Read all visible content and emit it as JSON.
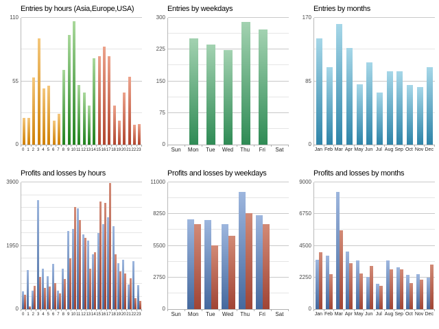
{
  "page": {
    "background": "#ffffff",
    "grid_layout": "2 rows x 3 columns of bar charts"
  },
  "palette": {
    "asia_orange": [
      "#f4c77c",
      "#cf8004"
    ],
    "europe_green": [
      "#a9d89b",
      "#20821d"
    ],
    "usa_red": [
      "#eca28b",
      "#b1452e"
    ],
    "weekday_green": [
      "#a3d2b1",
      "#2f8b55"
    ],
    "month_blue": [
      "#a6d7e8",
      "#2e84a8"
    ],
    "profit_blue": [
      "#9db6de",
      "#45699e"
    ],
    "loss_red": [
      "#d28a76",
      "#a04434"
    ]
  },
  "chart_data": [
    {
      "type": "bar",
      "title": "Entries by hours (Asia,Europe,USA)",
      "xlabel": "",
      "ylabel": "",
      "y_max": 110,
      "y_ticks": [
        0,
        55,
        110
      ],
      "grid_divisions": 4,
      "legend": "none",
      "categories": [
        "0",
        "1",
        "2",
        "3",
        "4",
        "5",
        "6",
        "7",
        "8",
        "9",
        "10",
        "11",
        "12",
        "13",
        "14",
        "15",
        "16",
        "17",
        "18",
        "19",
        "20",
        "21",
        "22",
        "23"
      ],
      "series": [
        {
          "name": "entries",
          "values": [
            23,
            23,
            58,
            92,
            49,
            51,
            21,
            27,
            65,
            95,
            107,
            52,
            45,
            34,
            75,
            77,
            85,
            77,
            34,
            21,
            45,
            59,
            17,
            18
          ]
        }
      ],
      "bar_palettes": [
        "asia_orange",
        "asia_orange",
        "asia_orange",
        "asia_orange",
        "asia_orange",
        "asia_orange",
        "asia_orange",
        "asia_orange",
        "europe_green",
        "europe_green",
        "europe_green",
        "europe_green",
        "europe_green",
        "europe_green",
        "europe_green",
        "usa_red",
        "usa_red",
        "usa_red",
        "usa_red",
        "usa_red",
        "usa_red",
        "usa_red",
        "usa_red",
        "usa_red"
      ]
    },
    {
      "type": "bar",
      "title": "Entries by weekdays",
      "xlabel": "",
      "ylabel": "",
      "y_max": 300,
      "y_ticks": [
        0,
        75,
        150,
        225,
        300
      ],
      "grid_divisions": 8,
      "legend": "none",
      "categories": [
        "Sun",
        "Mon",
        "Tue",
        "Wed",
        "Thu",
        "Fri",
        "Sat"
      ],
      "series": [
        {
          "name": "entries",
          "palette": "weekday_green",
          "values": [
            0,
            252,
            237,
            224,
            290,
            272,
            0
          ]
        }
      ]
    },
    {
      "type": "bar",
      "title": "Entries by months",
      "xlabel": "",
      "ylabel": "",
      "y_max": 170,
      "y_ticks": [
        0,
        85,
        170
      ],
      "grid_divisions": 4,
      "legend": "none",
      "categories": [
        "Jan",
        "Feb",
        "Mar",
        "Apr",
        "May",
        "Jun",
        "Jul",
        "Aug",
        "Sep",
        "Oct",
        "Nov",
        "Dec"
      ],
      "series": [
        {
          "name": "entries",
          "palette": "month_blue",
          "values": [
            142,
            104,
            162,
            130,
            81,
            110,
            70,
            98,
            98,
            80,
            77,
            104
          ]
        }
      ]
    },
    {
      "type": "bar",
      "title": "Profits and losses by hours",
      "xlabel": "",
      "ylabel": "",
      "y_max": 3900,
      "y_ticks": [
        0,
        1950,
        3900
      ],
      "grid_divisions": 10,
      "legend": "none",
      "categories": [
        "0",
        "1",
        "2",
        "3",
        "4",
        "5",
        "6",
        "7",
        "8",
        "9",
        "10",
        "11",
        "12",
        "13",
        "14",
        "15",
        "16",
        "17",
        "18",
        "19",
        "20",
        "21",
        "22",
        "23"
      ],
      "series": [
        {
          "name": "profits",
          "palette": "profit_blue",
          "values": [
            550,
            1200,
            560,
            3350,
            1240,
            1020,
            1400,
            560,
            1250,
            2400,
            2470,
            3090,
            2290,
            2100,
            1680,
            2330,
            2620,
            2820,
            2550,
            1410,
            1510,
            750,
            1480,
            730
          ]
        },
        {
          "name": "losses",
          "palette": "loss_red",
          "values": [
            440,
            90,
            720,
            1000,
            650,
            700,
            800,
            480,
            930,
            1550,
            3150,
            2750,
            2200,
            1240,
            1750,
            3310,
            3270,
            3870,
            1680,
            1160,
            1090,
            950,
            330,
            250
          ]
        }
      ]
    },
    {
      "type": "bar",
      "title": "Profits and losses by weekdays",
      "xlabel": "",
      "ylabel": "",
      "y_max": 11000,
      "y_ticks": [
        0,
        2750,
        5500,
        8250,
        11000
      ],
      "grid_divisions": 8,
      "legend": "none",
      "categories": [
        "Sun",
        "Mon",
        "Tue",
        "Wed",
        "Thu",
        "Fri",
        "Sat"
      ],
      "series": [
        {
          "name": "profits",
          "palette": "profit_blue",
          "values": [
            0,
            7800,
            7750,
            7350,
            10150,
            8150,
            0
          ]
        },
        {
          "name": "losses",
          "palette": "loss_red",
          "values": [
            0,
            7400,
            5550,
            6350,
            8300,
            7400,
            0
          ]
        }
      ]
    },
    {
      "type": "bar",
      "title": "Profits and losses by months",
      "xlabel": "",
      "ylabel": "",
      "y_max": 9000,
      "y_ticks": [
        0,
        2250,
        4500,
        6750,
        9000
      ],
      "grid_divisions": 8,
      "legend": "none",
      "categories": [
        "Jan",
        "Feb",
        "Mar",
        "Apr",
        "May",
        "Jun",
        "Jul",
        "Aug",
        "Sep",
        "Oct",
        "Nov",
        "Dec"
      ],
      "series": [
        {
          "name": "profits",
          "palette": "profit_blue",
          "values": [
            3500,
            3800,
            8300,
            4100,
            3450,
            2300,
            1800,
            3450,
            2950,
            2450,
            2500,
            2250
          ]
        },
        {
          "name": "losses",
          "palette": "loss_red",
          "values": [
            4050,
            2500,
            5600,
            3250,
            2550,
            3050,
            1650,
            2800,
            2800,
            1850,
            2100,
            3150
          ]
        }
      ]
    }
  ]
}
